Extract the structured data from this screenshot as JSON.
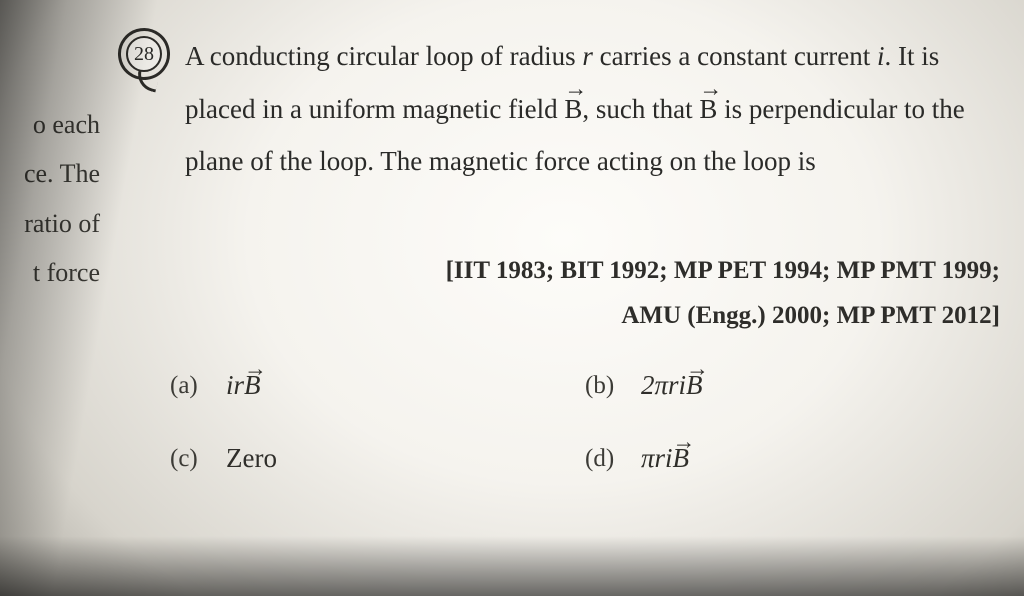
{
  "left_margin": {
    "line1": "o each",
    "line2": "ce. The",
    "line3": "ratio of",
    "line4": "t force"
  },
  "question": {
    "number": "28",
    "text_pre": "A conducting circular loop of radius ",
    "var_r": "r",
    "text_mid1": " carries a constant current ",
    "var_i": "i",
    "text_mid2": ". It is placed in a uniform magnetic field ",
    "vec_B1": "B",
    "text_mid3": ", such that ",
    "vec_B2": "B",
    "text_mid4": " is perpendicular to the plane of the loop. The magnetic force acting on the loop is"
  },
  "source": {
    "line1": "[IIT 1983; BIT 1992; MP PET 1994; MP PMT 1999;",
    "line2": "AMU (Engg.) 2000; MP PMT 2012]"
  },
  "options": {
    "a": {
      "label": "(a)",
      "pre": "ir",
      "vec": "B"
    },
    "b": {
      "label": "(b)",
      "pre": "2πri",
      "vec": "B"
    },
    "c": {
      "label": "(c)",
      "text": "Zero"
    },
    "d": {
      "label": "(d)",
      "pre": "πri",
      "vec": "B"
    }
  },
  "colors": {
    "text": "#2a2a28",
    "bg_light": "#fdfcf9",
    "bg_dark": "#5a574f"
  }
}
